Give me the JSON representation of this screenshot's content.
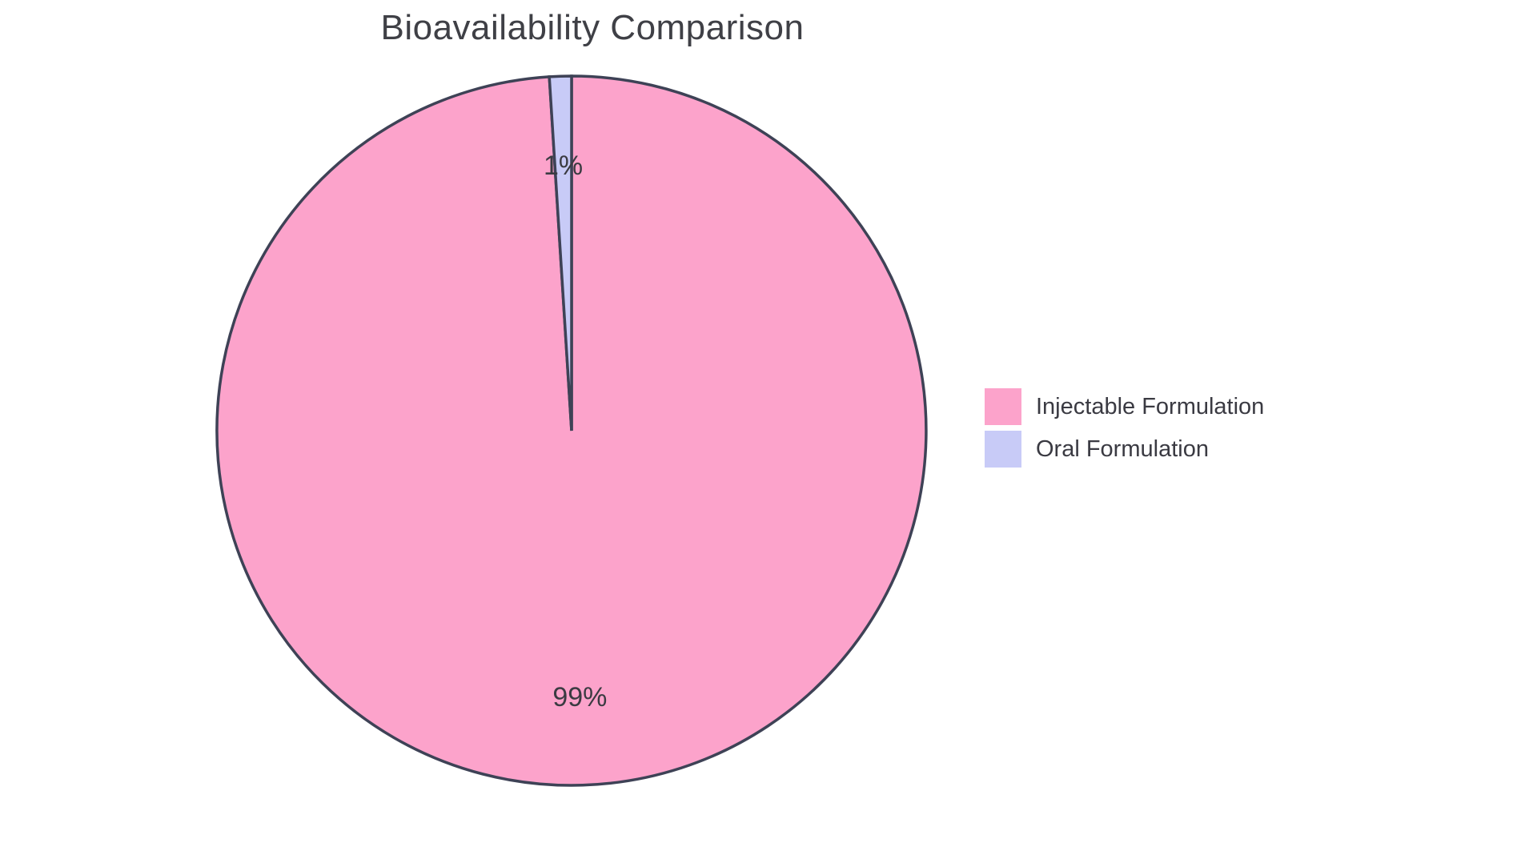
{
  "chart_data": {
    "type": "pie",
    "title": "Bioavailability Comparison",
    "labels": [
      "Injectable Formulation",
      "Oral Formulation"
    ],
    "values": [
      99,
      1
    ],
    "value_labels": [
      "99%",
      "1%"
    ],
    "colors": [
      "#fca3cb",
      "#c8cbf7"
    ],
    "stroke_color": "#3e4256",
    "label_color": "#3b3b42",
    "legend_position": "right",
    "start_angle_deg": 0,
    "direction": "clockwise"
  }
}
